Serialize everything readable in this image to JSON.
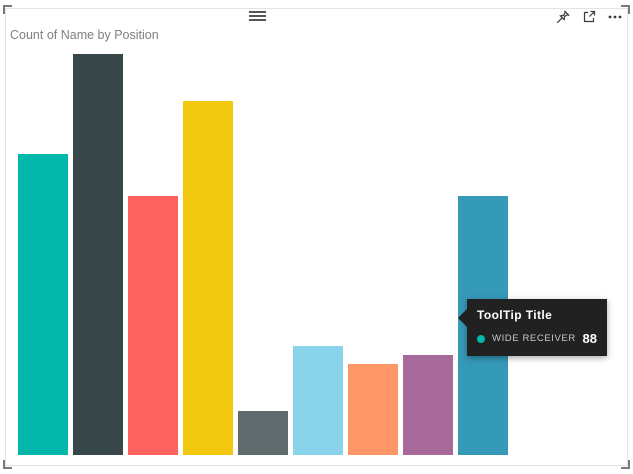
{
  "visual": {
    "title": "Count of Name by Position"
  },
  "toolbar": {
    "icons": [
      {
        "name": "pin-icon",
        "label": "pin"
      },
      {
        "name": "focus-mode-icon",
        "label": "focus mode"
      },
      {
        "name": "more-options-icon",
        "label": "more options"
      }
    ]
  },
  "tooltip": {
    "title": "ToolTip Title",
    "series_label": "WIDE RECEIVER",
    "value": "88",
    "marker_color": "#01B8AA",
    "background": "#212121"
  },
  "chart_data": {
    "type": "bar",
    "title": "Count of Name by Position",
    "categories": [
      "",
      "",
      "",
      "",
      "",
      "",
      "",
      "",
      ""
    ],
    "values": [
      102,
      136,
      88,
      120,
      15,
      37,
      31,
      34,
      88
    ],
    "colors": [
      "#01B8AA",
      "#374649",
      "#FD625E",
      "#F2C80F",
      "#5F6B6D",
      "#8AD4EB",
      "#FE9666",
      "#A66999",
      "#3599B8"
    ],
    "ylim": [
      0,
      136
    ],
    "xlabel": "",
    "ylabel": "",
    "grid": false,
    "legend": "none",
    "axes_labels_visible": false,
    "highlighted": {
      "bar_index": 8,
      "label": "WIDE RECEIVER",
      "value": 88
    }
  }
}
